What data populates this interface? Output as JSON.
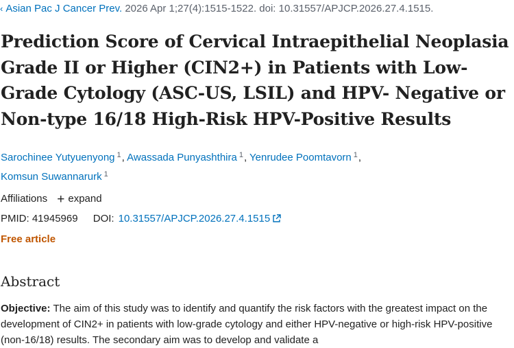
{
  "citation": {
    "journal": "Asian Pac J Cancer Prev.",
    "details": "2026 Apr 1;27(4):1515-1522. doi: 10.31557/APJCP.2026.27.4.1515."
  },
  "article": {
    "title": "Prediction Score of Cervical Intraepithelial Neoplasia Grade II or Higher (CIN2+) in Patients with Low-Grade Cytology (ASC-US, LSIL) and HPV- Negative or Non-type 16/18 High-Risk HPV-Positive Results",
    "authors": [
      {
        "name": "Sarochinee Yutyuenyong",
        "sup": "1"
      },
      {
        "name": "Awassada Punyashthira",
        "sup": "1"
      },
      {
        "name": "Yenrudee Poomtavorn",
        "sup": "1"
      },
      {
        "name": "Komsun Suwannarurk",
        "sup": "1"
      }
    ],
    "affiliations_label": "Affiliations",
    "expand_label": "expand",
    "pmid_label": "PMID:",
    "pmid": "41945969",
    "doi_label": "DOI:",
    "doi": "10.31557/APJCP.2026.27.4.1515",
    "free_label": "Free article"
  },
  "abstract": {
    "heading": "Abstract",
    "objective_label": "Objective:",
    "objective_text": "The aim of this study was to identify and quantify the risk factors with the greatest impact on the development of CIN2+ in patients with low-grade cytology and either HPV-negative or high-risk HPV-positive (non-16/18) results. The secondary aim was to develop and validate a"
  },
  "colors": {
    "link": "#0071bc",
    "free": "#c05600",
    "text": "#212121"
  },
  "icons": {
    "back": "chevron-left-icon",
    "external": "external-link-icon",
    "plus": "plus-icon"
  }
}
